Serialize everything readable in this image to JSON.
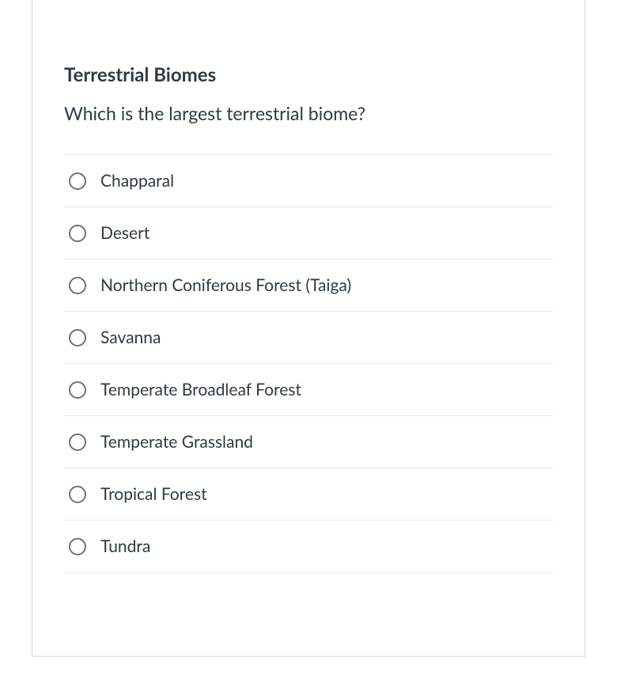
{
  "question": {
    "title": "Terrestrial Biomes",
    "prompt": "Which is the largest terrestrial biome?",
    "options": [
      {
        "label": "Chapparal"
      },
      {
        "label": "Desert"
      },
      {
        "label": "Northern Coniferous Forest (Taiga)"
      },
      {
        "label": "Savanna"
      },
      {
        "label": "Temperate Broadleaf Forest"
      },
      {
        "label": "Temperate Grassland"
      },
      {
        "label": "Tropical Forest"
      },
      {
        "label": "Tundra"
      }
    ]
  },
  "colors": {
    "text_primary": "#2d3b45",
    "border": "#e8e8e8",
    "outer_border": "#d8d8d8",
    "radio_border": "#6e7377",
    "background": "#ffffff"
  }
}
